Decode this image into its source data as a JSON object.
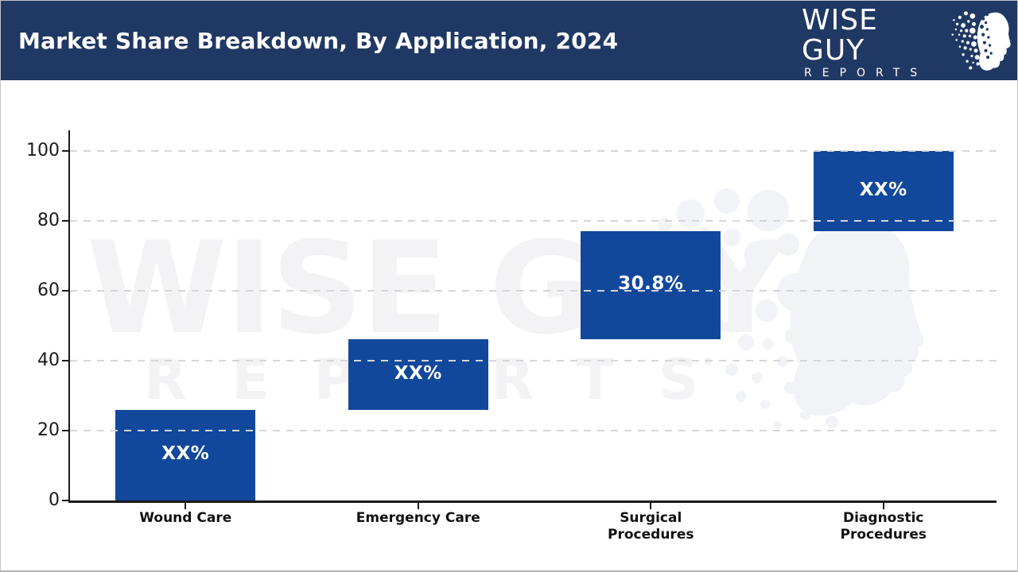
{
  "header": {
    "title": "Market Share Breakdown, By Application, 2024",
    "bg_color": "#203864",
    "logo": {
      "line1": "WISE GUY",
      "line2": "REPORTS"
    }
  },
  "watermark": {
    "line1": "WISE GUY",
    "line2": "REPORTS"
  },
  "chart_data": {
    "type": "bar",
    "variant": "waterfall",
    "title": "Market Share Breakdown, By Application, 2024",
    "categories": [
      "Wound Care",
      "Emergency Care",
      "Surgical Procedures",
      "Diagnostic Procedures"
    ],
    "category_label_lines": [
      [
        "Wound Care"
      ],
      [
        "Emergency Care"
      ],
      [
        "Surgical",
        "Procedures"
      ],
      [
        "Diagnostic",
        "Procedures"
      ]
    ],
    "series": [
      {
        "name": "Market share (%)",
        "segments": [
          {
            "from": 0,
            "to": 25.8
          },
          {
            "from": 25.8,
            "to": 46.2
          },
          {
            "from": 46.2,
            "to": 77.0
          },
          {
            "from": 77.0,
            "to": 100.0
          }
        ]
      }
    ],
    "bar_labels": [
      "XX%",
      "XX%",
      "30.8%",
      "XX%"
    ],
    "yticks": [
      0,
      20,
      40,
      60,
      80,
      100
    ],
    "ylim": [
      0,
      106
    ],
    "xlabel": "",
    "ylabel": "",
    "grid": "horizontal-dashed",
    "legend": "none",
    "colors": {
      "bar": "#11489c",
      "bar_label": "#ffffff",
      "axis": "#1a1a1a",
      "gridline": "#d6d6d6",
      "tick_label": "#1a1a1a",
      "header_bg": "#203864",
      "watermark": "#f3f3f5"
    }
  }
}
